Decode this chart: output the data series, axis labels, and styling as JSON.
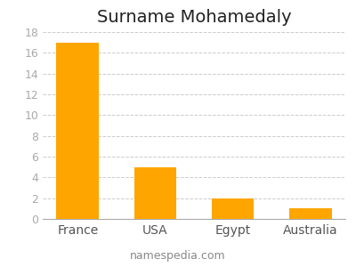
{
  "title": "Surname Mohamedaly",
  "categories": [
    "France",
    "USA",
    "Egypt",
    "Australia"
  ],
  "values": [
    17,
    5,
    2,
    1
  ],
  "bar_color": "#FFA500",
  "ylim": [
    0,
    18
  ],
  "yticks": [
    0,
    2,
    4,
    6,
    8,
    10,
    12,
    14,
    16,
    18
  ],
  "background_color": "#ffffff",
  "grid_color": "#cccccc",
  "footer_text": "namespedia.com",
  "title_fontsize": 14,
  "tick_fontsize": 9,
  "footer_fontsize": 9
}
